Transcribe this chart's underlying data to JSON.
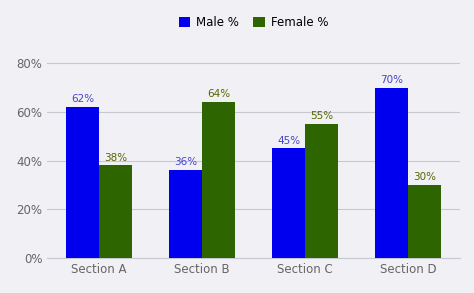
{
  "categories": [
    "Section A",
    "Section B",
    "Section C",
    "Section D"
  ],
  "male_values": [
    0.62,
    0.36,
    0.45,
    0.7
  ],
  "female_values": [
    0.38,
    0.64,
    0.55,
    0.3
  ],
  "male_labels": [
    "62%",
    "36%",
    "45%",
    "70%"
  ],
  "female_labels": [
    "38%",
    "64%",
    "55%",
    "30%"
  ],
  "male_color": "#0000ee",
  "female_color": "#2d6600",
  "male_legend": "Male %",
  "female_legend": "Female %",
  "ylim": [
    0,
    0.88
  ],
  "yticks": [
    0,
    0.2,
    0.4,
    0.6,
    0.8
  ],
  "ytick_labels": [
    "0%",
    "20%",
    "40%",
    "60%",
    "80%"
  ],
  "background_color": "#f0f0f5",
  "grid_color": "#c8c8d0",
  "label_fontsize": 7.5,
  "tick_fontsize": 8.5,
  "legend_fontsize": 8.5,
  "bar_width": 0.32,
  "male_label_color": "#4444cc",
  "female_label_color": "#556600"
}
